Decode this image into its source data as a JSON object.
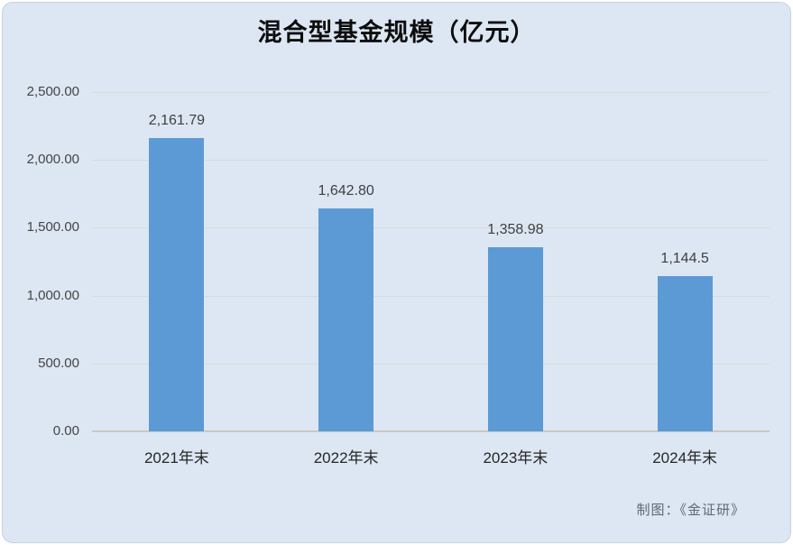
{
  "credit": "制图：《金证研》",
  "chart_data": {
    "type": "bar",
    "title": "混合型基金规模（亿元）",
    "categories": [
      "2021年末",
      "2022年末",
      "2023年末",
      "2024年末"
    ],
    "values": [
      2161.79,
      1642.8,
      1358.98,
      1144.5
    ],
    "value_labels": [
      "2,161.79",
      "1,642.80",
      "1,358.98",
      "1,144.5"
    ],
    "xlabel": "",
    "ylabel": "",
    "ylim": [
      0,
      2500
    ],
    "ytick_values": [
      0,
      500,
      1000,
      1500,
      2000,
      2500
    ],
    "ytick_labels": [
      "0.00",
      "500.00",
      "1,000.00",
      "1,500.00",
      "2,000.00",
      "2,500.00"
    ],
    "grid": true,
    "legend_position": "none",
    "bar_color": "#5b9ad5",
    "background_color": "#dde7f3",
    "gridline_color": "#d9d9d9",
    "axis_line_color": "#c9c8c2"
  }
}
